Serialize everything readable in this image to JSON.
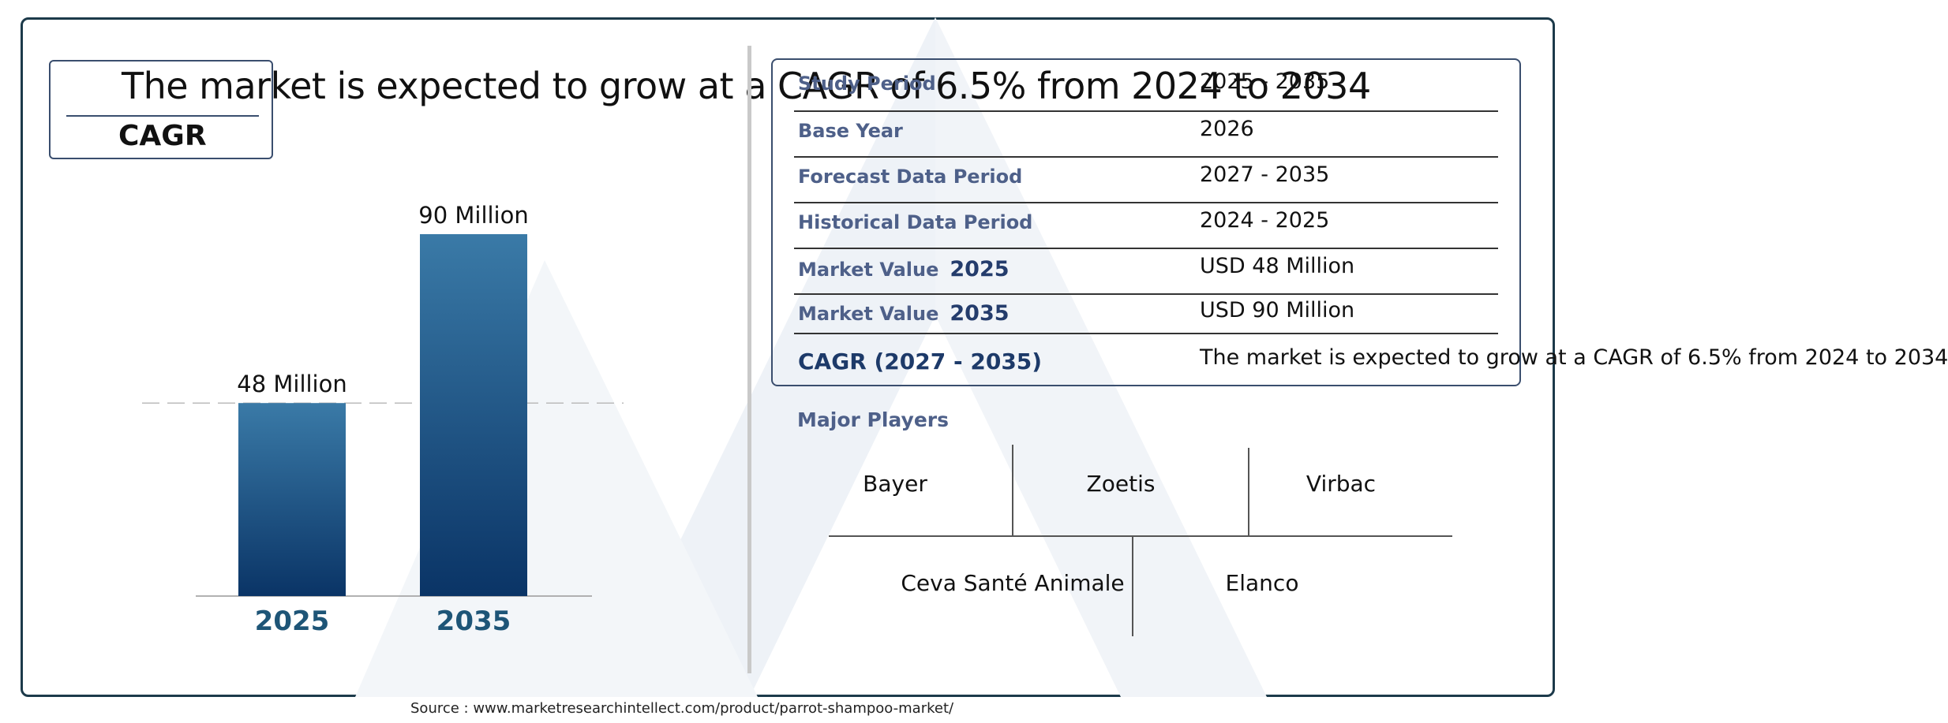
{
  "headline": "The market is expected to grow at a CAGR of 6.5% from 2024 to 2034",
  "cagr_label": "CAGR",
  "chart_data": {
    "type": "bar",
    "categories": [
      "2025",
      "2035"
    ],
    "values": [
      48,
      90
    ],
    "value_labels": [
      "48 Million",
      "90 Million"
    ],
    "title": "",
    "xlabel": "",
    "ylabel": "",
    "ylim": [
      0,
      100
    ],
    "grid": false,
    "reference_line": 48,
    "colors": {
      "bar_top": "#3a7aa7",
      "bar_bottom": "#0a3466",
      "tick_label": "#1e5577"
    }
  },
  "report_table": {
    "rows": [
      {
        "label": "Study Period",
        "year": "",
        "value": "2025 - 2035"
      },
      {
        "label": "Base Year",
        "year": "",
        "value": "2026"
      },
      {
        "label": "Forecast Data Period",
        "year": "",
        "value": "2027 - 2035"
      },
      {
        "label": "Historical Data Period",
        "year": "",
        "value": "2024 - 2025"
      },
      {
        "label": "Market Value",
        "year": "2025",
        "value": "USD 48 Million"
      },
      {
        "label": "Market Value",
        "year": "2035",
        "value": "USD 90 Million"
      }
    ],
    "cagr_row": {
      "label": "CAGR (2027 - 2035)",
      "value": "The market is expected to grow at a CAGR of 6.5% from 2024 to 2034"
    }
  },
  "major_players": {
    "title": "Major Players",
    "top_row": [
      "Bayer",
      "Zoetis",
      "Virbac"
    ],
    "bottom_row": [
      "Ceva Santé Animale",
      "Elanco"
    ]
  },
  "source": "Source : www.marketresearchintellect.com/product/parrot-shampoo-market/",
  "colors": {
    "frame": "#1c3a4a",
    "label_blue": "#4e6089",
    "watermark": "#f1f4f8"
  }
}
